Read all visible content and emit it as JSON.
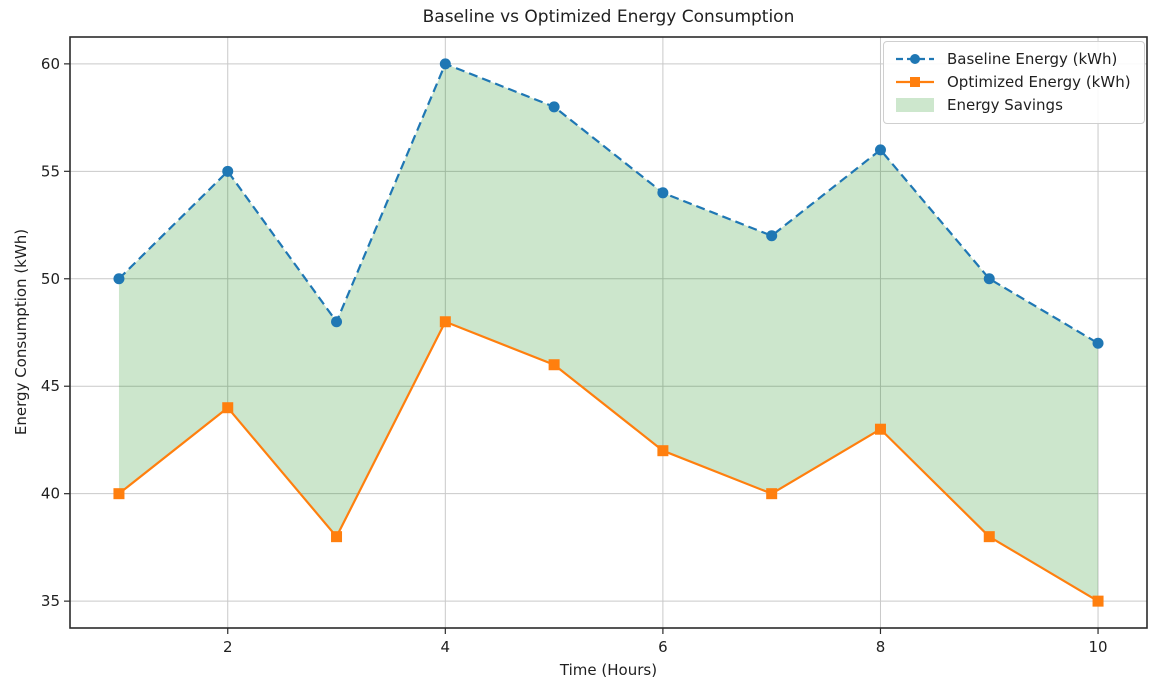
{
  "chart_data": {
    "type": "line",
    "title": "Baseline vs Optimized Energy Consumption",
    "xlabel": "Time (Hours)",
    "ylabel": "Energy Consumption (kWh)",
    "x": [
      1,
      2,
      3,
      4,
      5,
      6,
      7,
      8,
      9,
      10
    ],
    "series": [
      {
        "name": "Baseline Energy (kWh)",
        "values": [
          50,
          55,
          48,
          60,
          58,
          54,
          52,
          56,
          50,
          47
        ],
        "color": "#1f77b4",
        "style": "dashed",
        "marker": "circle"
      },
      {
        "name": "Optimized Energy (kWh)",
        "values": [
          40,
          44,
          38,
          48,
          46,
          42,
          40,
          43,
          38,
          35
        ],
        "color": "#ff7f0e",
        "style": "solid",
        "marker": "square"
      }
    ],
    "savings": {
      "label": "Energy Savings",
      "color": "#008000",
      "opacity": 0.2,
      "legend_fill": "#cde7cd"
    },
    "xlim": [
      0.55,
      10.45
    ],
    "ylim": [
      33.75,
      61.25
    ],
    "xticks": [
      2,
      4,
      6,
      8,
      10
    ],
    "yticks": [
      35,
      40,
      45,
      50,
      55,
      60
    ],
    "grid": true,
    "legend_position": "top-right",
    "grid_color": "#c9c9c9",
    "axis_color": "#2b2b2b",
    "text_color": "#1f1f1f"
  }
}
